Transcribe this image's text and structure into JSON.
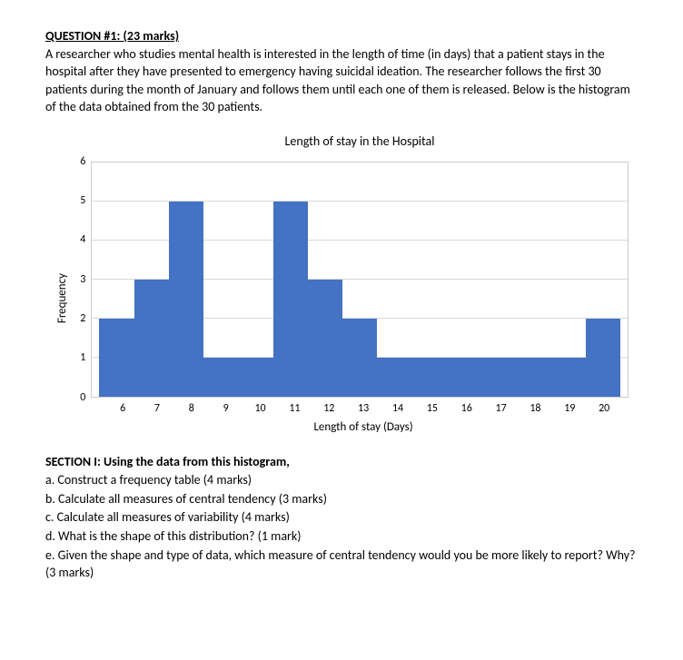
{
  "header": {
    "title": "QUESTION #1: (23 marks)",
    "intro": "A researcher who studies mental health is interested in the length of time (in days) that a patient stays in the hospital after they have presented to emergency having suicidal ideation. The researcher follows the first 30 patients during the month of January and follows them until each one of them is released. Below is the histogram of the data obtained from the 30 patients."
  },
  "chart": {
    "type": "histogram",
    "title": "Length of stay in the Hospital",
    "xlabel": "Length of stay (Days)",
    "ylabel": "Frequency",
    "ylim": [
      0,
      6
    ],
    "ytick_step": 1,
    "yticks": [
      "0",
      "1",
      "2",
      "3",
      "4",
      "5",
      "6"
    ],
    "xticks": [
      "6",
      "7",
      "8",
      "9",
      "10",
      "11",
      "12",
      "13",
      "14",
      "15",
      "16",
      "17",
      "18",
      "19",
      "20"
    ],
    "values": [
      2,
      3,
      5,
      1,
      1,
      5,
      3,
      2,
      1,
      1,
      1,
      1,
      1,
      1,
      2
    ],
    "bar_color": "#4472c4",
    "background_color": "#ffffff",
    "grid_color": "#d9d9d9",
    "border_color": "#cccccc"
  },
  "section": {
    "title": "SECTION I: Using the data from this histogram,",
    "items": {
      "a": "a. Construct a frequency table (4 marks)",
      "b": "b. Calculate all measures of central tendency (3 marks)",
      "c": "c. Calculate all measures of variability (4 marks)",
      "d": "d. What is the shape of this distribution? (1 mark)",
      "e": "e. Given the shape and type of data, which measure of central tendency would you be more likely to report? Why? (3 marks)"
    }
  }
}
